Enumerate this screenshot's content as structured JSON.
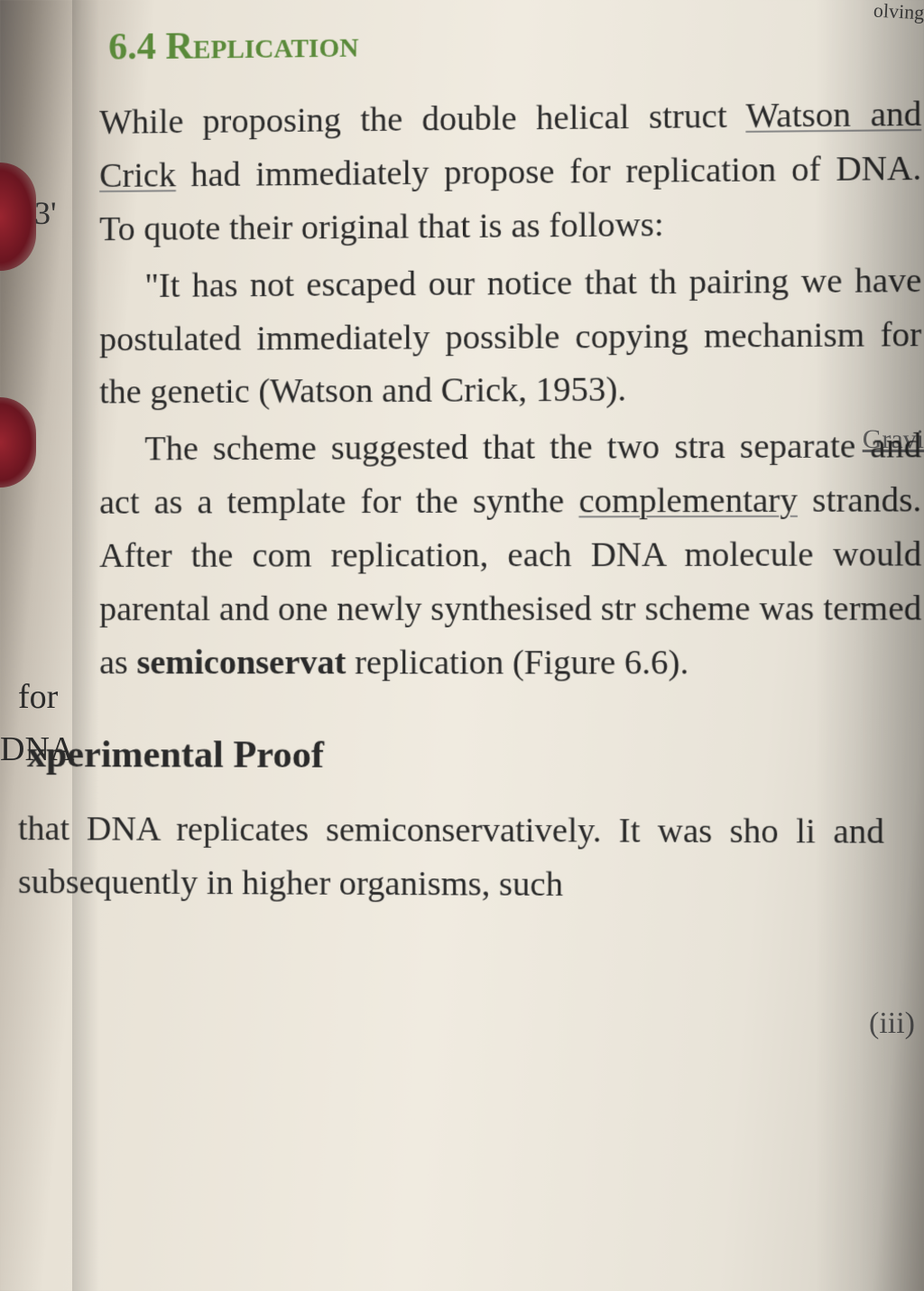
{
  "section": {
    "number": "6.4",
    "title": "Replication"
  },
  "margin": {
    "three_prime": "3'",
    "for": "for",
    "na": "DNA"
  },
  "right_margin": {
    "olving": "olving",
    "gravi": "Gravi",
    "iii": "(iii)"
  },
  "para1": {
    "t1": "While proposing the double helical struct",
    "watson_crick": "Watson and Crick",
    "t2": " had immediately propose",
    "t3": "for replication of DNA. To quote their original",
    "t4": "that is as follows:"
  },
  "quote": {
    "t1": "\"It has not escaped our notice that th",
    "t2": "pairing we have postulated immediately",
    "t3": "possible copying mechanism for the genetic",
    "t4": "(Watson and Crick, 1953)."
  },
  "para2": {
    "t1": "The scheme suggested that the two stra",
    "t2": "separate and act as a template for the synthe",
    "complementary": "complementary",
    "t3": " strands. After the com",
    "t4": "replication, each DNA molecule would",
    "t5": "parental and one newly synthesised str",
    "t6": "scheme was termed as ",
    "semiconservative": "semiconservat",
    "t7": "replication (Figure 6.6)."
  },
  "subheading": "xperimental Proof",
  "proof": {
    "t1": "that DNA replicates semiconservatively. It was sho",
    "t2": "li and subsequently in higher organisms, such"
  }
}
